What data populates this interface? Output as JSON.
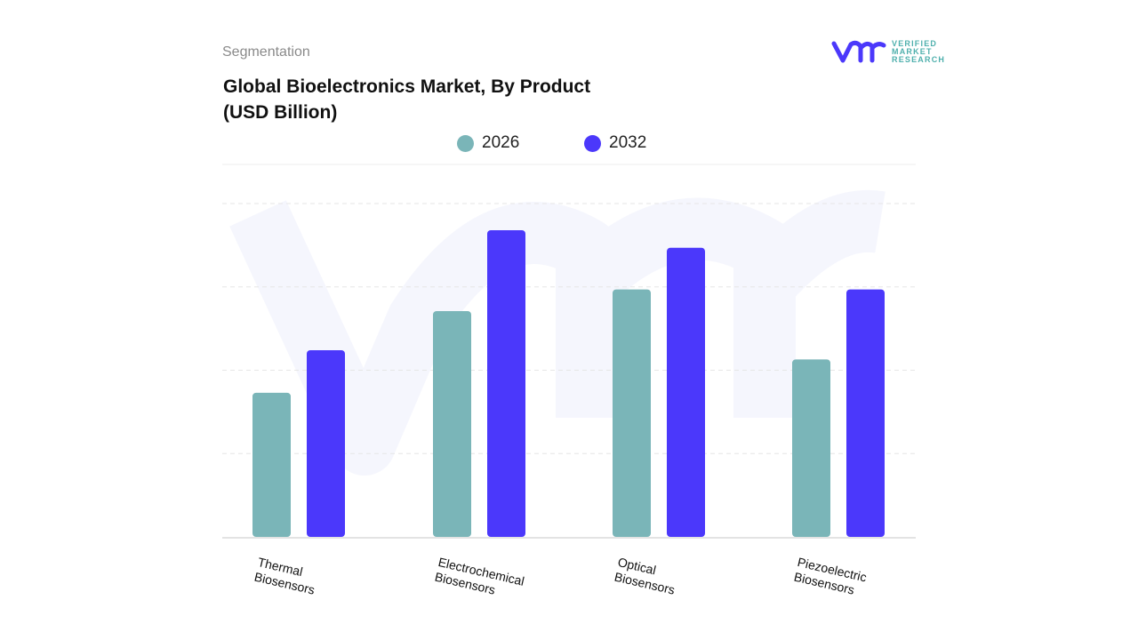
{
  "header": {
    "section": "Segmentation",
    "title_line1": "Global Bioelectronics Market, By Product",
    "title_line2": "(USD Billion)"
  },
  "logo": {
    "mark": "vmr",
    "line1": "VERIFIED",
    "line2": "MARKET",
    "line3": "RESEARCH"
  },
  "chart_data": {
    "type": "bar",
    "title": "Global Bioelectronics Market, By Product (USD Billion)",
    "categories": [
      "Thermal Biosensors",
      "Electrochemical Biosensors",
      "Optical Biosensors",
      "Piezoelectric Biosensors"
    ],
    "category_lines": [
      [
        "Thermal",
        "Biosensors"
      ],
      [
        "Electrochemical",
        "Biosensors"
      ],
      [
        "Optical",
        "Biosensors"
      ],
      [
        "Piezoelectric",
        "Biosensors"
      ]
    ],
    "series": [
      {
        "name": "2026",
        "color": "#7ab5b8",
        "values": [
          1.73,
          2.71,
          2.97,
          2.13
        ]
      },
      {
        "name": "2032",
        "color": "#4b38fb",
        "values": [
          2.24,
          3.68,
          3.47,
          2.97
        ]
      }
    ],
    "ylim": [
      0,
      4
    ],
    "grid": true,
    "legend": "top-center",
    "y_tick_labels_shown": false
  }
}
